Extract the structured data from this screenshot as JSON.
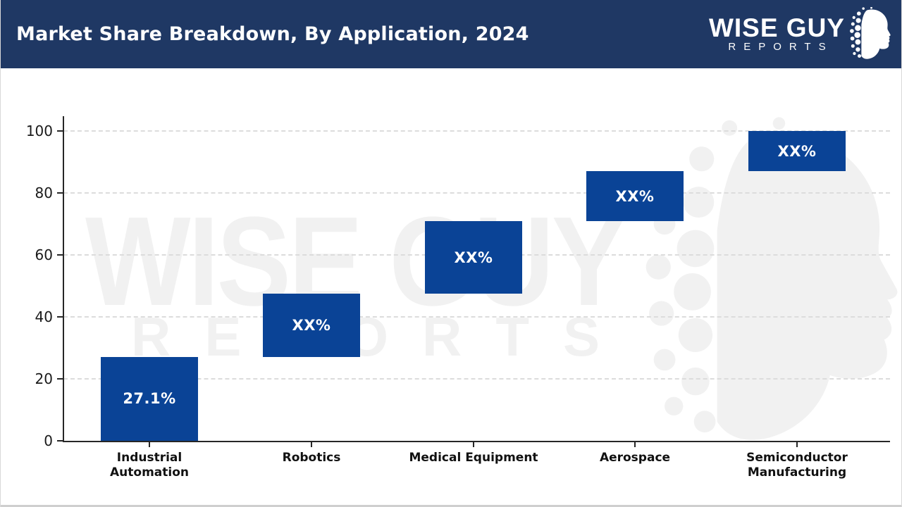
{
  "header": {
    "title": "Market Share Breakdown, By Application, 2024",
    "logo": {
      "line1": "WISE GUY",
      "line2": "REPORTS"
    }
  },
  "watermark": {
    "line1": "WISE GUY",
    "line2": "REPORTS"
  },
  "chart_data": {
    "type": "bar",
    "subtype": "waterfall",
    "title": "Market Share Breakdown, By Application, 2024",
    "categories": [
      "Industrial Automation",
      "Robotics",
      "Medical Equipment",
      "Aerospace",
      "Semiconductor Manufacturing"
    ],
    "segments": [
      {
        "category": "Industrial Automation",
        "start": 0,
        "end": 27.1,
        "label": "27.1%"
      },
      {
        "category": "Robotics",
        "start": 27.1,
        "end": 47.4,
        "label": "XX%"
      },
      {
        "category": "Medical Equipment",
        "start": 47.4,
        "end": 70.9,
        "label": "XX%"
      },
      {
        "category": "Aerospace",
        "start": 70.9,
        "end": 87.0,
        "label": "XX%"
      },
      {
        "category": "Semiconductor Manufacturing",
        "start": 87.0,
        "end": 100,
        "label": "XX%"
      }
    ],
    "ylabel": "",
    "xlabel": "",
    "ylim": [
      0,
      100
    ],
    "yticks": [
      0,
      20,
      40,
      60,
      80,
      100
    ],
    "grid": "horizontal-dashed",
    "legend": "none",
    "bar_color": "#0a4396",
    "bar_label_color": "#ffffff",
    "axis_color": "#262626",
    "gridline_color": "#dcdcdc",
    "header_color": "#1f3864"
  }
}
